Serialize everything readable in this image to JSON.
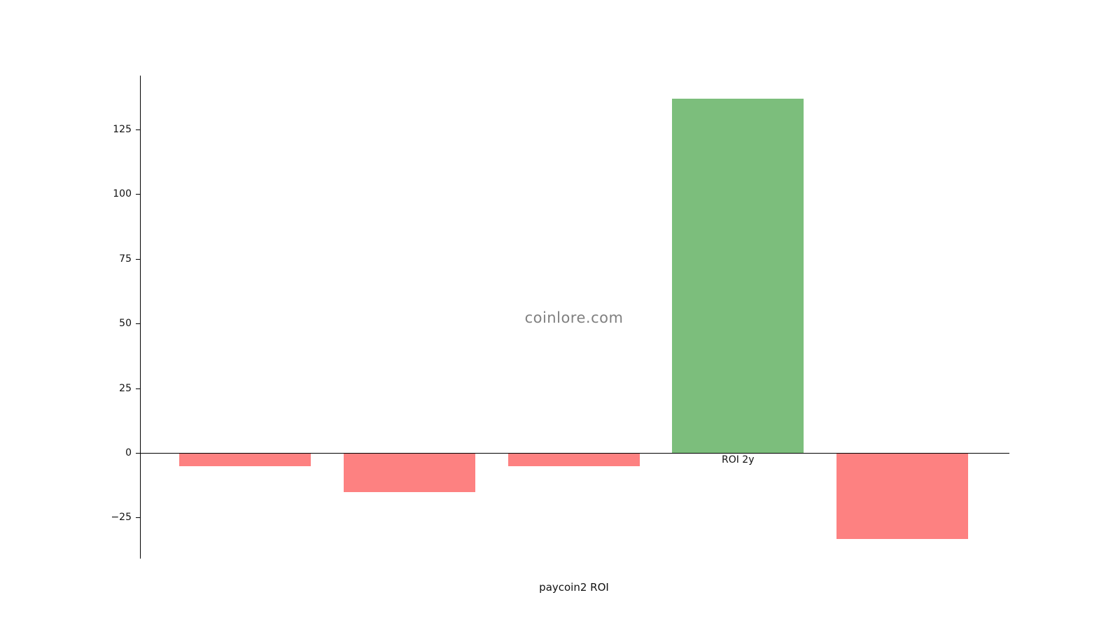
{
  "chart_data": {
    "type": "bar",
    "title": "paycoin2 ROI",
    "watermark": "coinlore.com",
    "categories": [
      "",
      "",
      "",
      "ROI 2y",
      ""
    ],
    "values": [
      -5,
      -15,
      -5,
      137,
      -33
    ],
    "bar_colors": {
      "positive": "#7cbe7c",
      "negative": "#fd8181"
    },
    "y_tick_values": [
      125,
      100,
      75,
      50,
      25,
      0,
      -25
    ],
    "y_tick_labels": [
      "125",
      "100",
      "75",
      "50",
      "25",
      "0",
      "−25"
    ],
    "ylim": [
      -41,
      146
    ],
    "xlabel": "",
    "ylabel": "",
    "grid": false,
    "legend": false,
    "axis_color": "#000000",
    "background_color": "#ffffff"
  }
}
